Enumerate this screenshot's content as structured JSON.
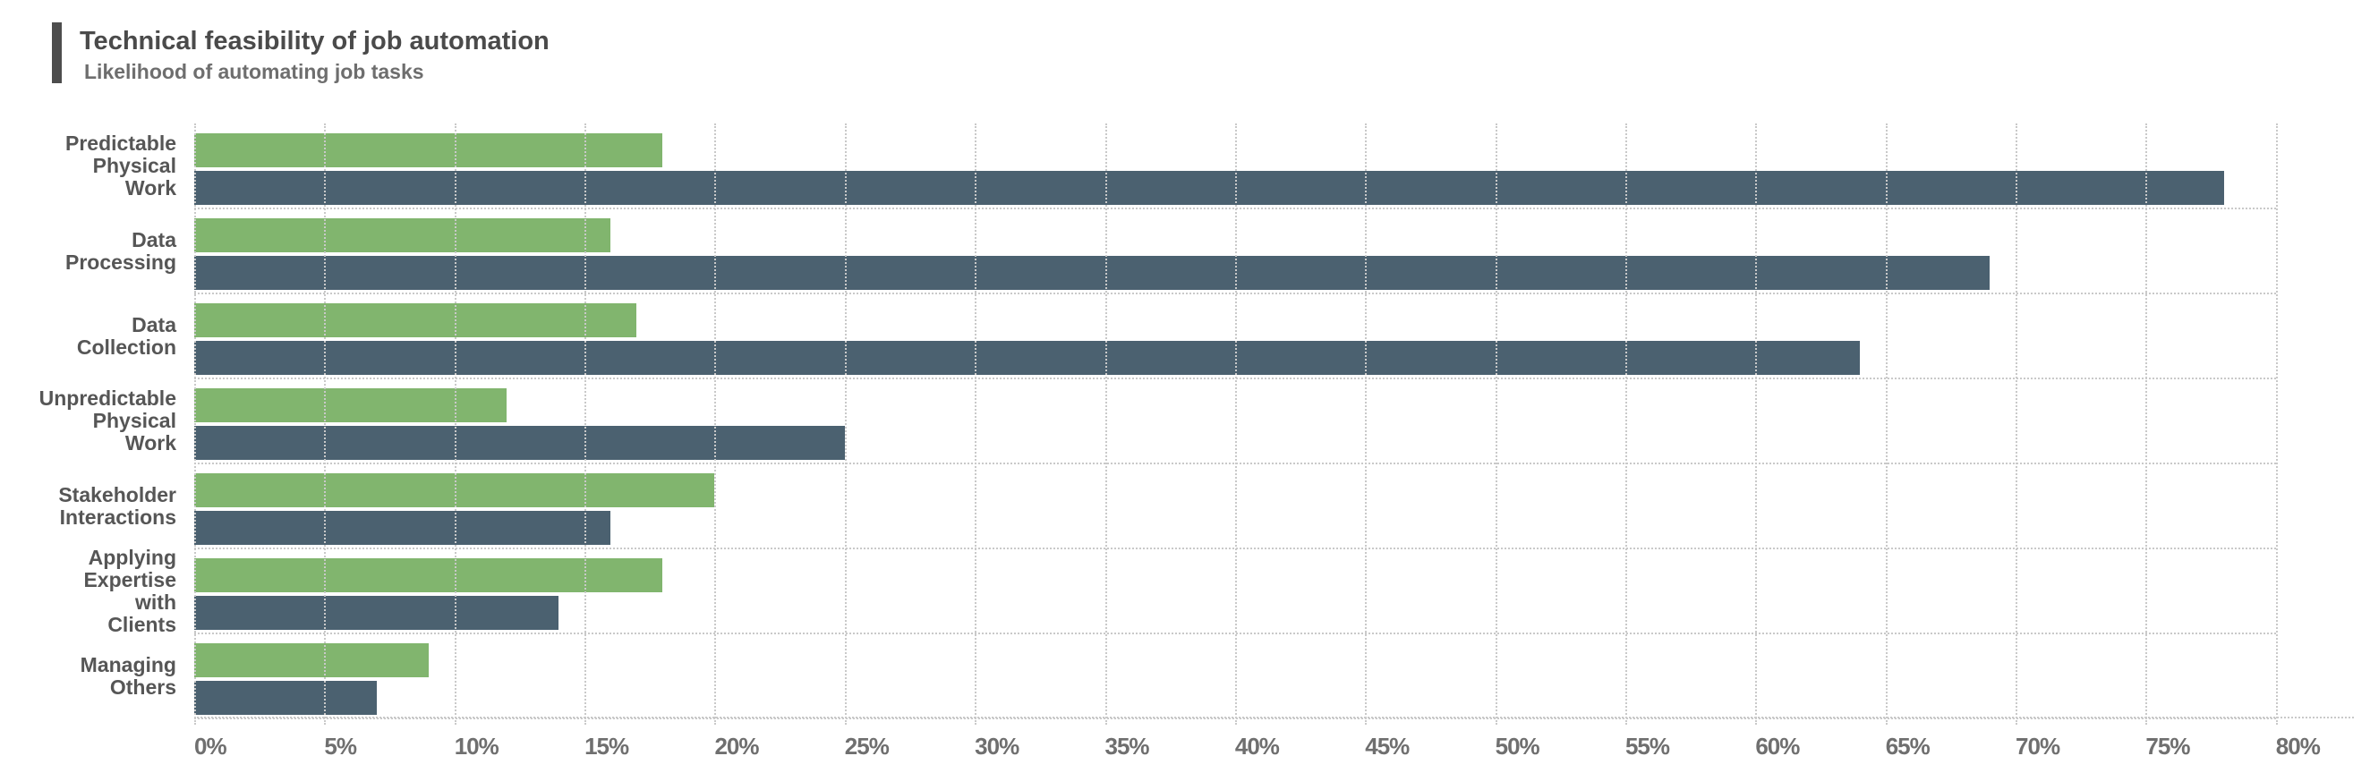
{
  "header": {
    "title": "Technical feasibility of job automation",
    "subtitle": "Likelihood of automating job tasks"
  },
  "chart_data": {
    "type": "bar",
    "orientation": "horizontal",
    "title": "Technical feasibility of job automation",
    "subtitle": "Likelihood of automating job tasks",
    "categories": [
      "Predictable Physical Work",
      "Data Processing",
      "Data Collection",
      "Unpredictable Physical Work",
      "Stakeholder Interactions",
      "Applying Expertise with Clients",
      "Managing Others"
    ],
    "series": [
      {
        "name": "green",
        "color": "#81b56e",
        "values": [
          18,
          16,
          17,
          12,
          20,
          18,
          9
        ]
      },
      {
        "name": "slate",
        "color": "#4b6170",
        "values": [
          78,
          69,
          64,
          25,
          16,
          14,
          7
        ]
      }
    ],
    "value_unit": "%",
    "x_ticks": [
      "0%",
      "5%",
      "10%",
      "15%",
      "20%",
      "25%",
      "30%",
      "35%",
      "40%",
      "45%",
      "50%",
      "55%",
      "60%",
      "65%",
      "70%",
      "75%",
      "80%"
    ],
    "xlim": [
      0,
      83
    ],
    "x_tick_step": 5,
    "grid": "dotted-vertical",
    "legend_position": "none",
    "bar_order_per_category": [
      "green",
      "slate"
    ]
  },
  "colors": {
    "green": "#81b56e",
    "slate": "#4b6170",
    "accent_bar": "#4d4d4d",
    "title_text": "#4a4a4a",
    "subtitle_text": "#6e6e6e",
    "category_label_text": "#565656",
    "tick_label_text": "#6f6f6f",
    "gridline": "#c9c9c9"
  }
}
